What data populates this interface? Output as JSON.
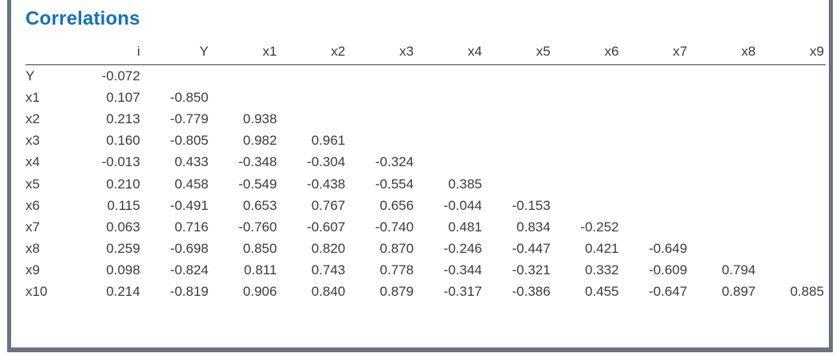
{
  "colors": {
    "title_accent": "#1272ba",
    "panel_border": "#68737f",
    "table_text": "#3b3b3b"
  },
  "panel": {
    "title": "Correlations"
  },
  "table": {
    "columns": [
      "i",
      "Y",
      "x1",
      "x2",
      "x3",
      "x4",
      "x5",
      "x6",
      "x7",
      "x8",
      "x9"
    ],
    "rows": [
      {
        "label": "Y",
        "values": [
          "-0.072"
        ]
      },
      {
        "label": "x1",
        "values": [
          "0.107",
          "-0.850"
        ]
      },
      {
        "label": "x2",
        "values": [
          "0.213",
          "-0.779",
          "0.938"
        ]
      },
      {
        "label": "x3",
        "values": [
          "0.160",
          "-0.805",
          "0.982",
          "0.961"
        ]
      },
      {
        "label": "x4",
        "values": [
          "-0.013",
          "0.433",
          "-0.348",
          "-0.304",
          "-0.324"
        ]
      },
      {
        "label": "x5",
        "values": [
          "0.210",
          "0.458",
          "-0.549",
          "-0.438",
          "-0.554",
          "0.385"
        ]
      },
      {
        "label": "x6",
        "values": [
          "0.115",
          "-0.491",
          "0.653",
          "0.767",
          "0.656",
          "-0.044",
          "-0.153"
        ]
      },
      {
        "label": "x7",
        "values": [
          "0.063",
          "0.716",
          "-0.760",
          "-0.607",
          "-0.740",
          "0.481",
          "0.834",
          "-0.252"
        ]
      },
      {
        "label": "x8",
        "values": [
          "0.259",
          "-0.698",
          "0.850",
          "0.820",
          "0.870",
          "-0.246",
          "-0.447",
          "0.421",
          "-0.649"
        ]
      },
      {
        "label": "x9",
        "values": [
          "0.098",
          "-0.824",
          "0.811",
          "0.743",
          "0.778",
          "-0.344",
          "-0.321",
          "0.332",
          "-0.609",
          "0.794"
        ]
      },
      {
        "label": "x10",
        "values": [
          "0.214",
          "-0.819",
          "0.906",
          "0.840",
          "0.879",
          "-0.317",
          "-0.386",
          "0.455",
          "-0.647",
          "0.897",
          "0.885"
        ]
      }
    ]
  }
}
